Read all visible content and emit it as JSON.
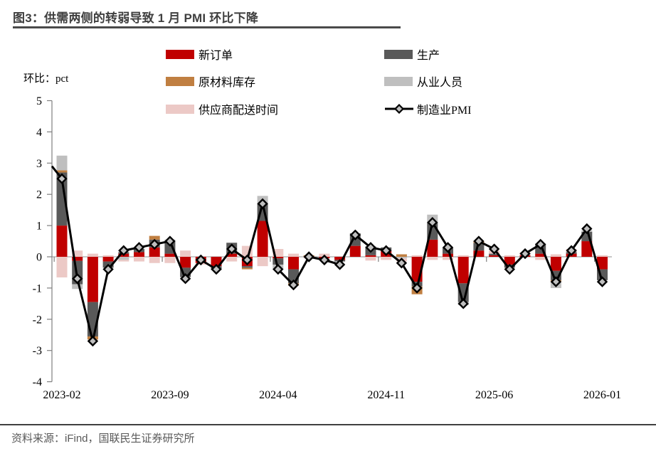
{
  "header": {
    "title": "图3：供需两侧的转弱导致 1 月 PMI 环比下降"
  },
  "footer": {
    "source": "资料来源：iFind，国联民生证券研究所"
  },
  "chart_data": {
    "type": "bar",
    "subtype": "stacked-bar-with-line-overlay",
    "unit_label": "环比：pct",
    "legend_position": "top",
    "grid": false,
    "ylim": [
      -4,
      5
    ],
    "y_ticks": [
      5,
      4,
      3,
      2,
      1,
      0,
      -1,
      -2,
      -3,
      -4
    ],
    "x_tick_labels": [
      "2023-02",
      "2023-09",
      "2024-04",
      "2024-11",
      "2025-06",
      "2026-01"
    ],
    "x": [
      "2023-02",
      "2023-03",
      "2023-04",
      "2023-05",
      "2023-06",
      "2023-07",
      "2023-08",
      "2023-09",
      "2023-10",
      "2023-11",
      "2023-12",
      "2024-01",
      "2024-02",
      "2024-03",
      "2024-04",
      "2024-05",
      "2024-06",
      "2024-07",
      "2024-08",
      "2024-09",
      "2024-10",
      "2024-11",
      "2024-12",
      "2025-01",
      "2025-02",
      "2025-03",
      "2025-04",
      "2025-05",
      "2025-06",
      "2025-07",
      "2025-08",
      "2025-09",
      "2025-10",
      "2025-11",
      "2025-12",
      "2026-01"
    ],
    "series": [
      {
        "name": "新订单",
        "type": "bar",
        "color": "#C00000",
        "values": [
          1.0,
          -0.13,
          -1.45,
          -0.15,
          0.1,
          0.15,
          0.3,
          0.1,
          -0.35,
          -0.2,
          -0.3,
          0.1,
          -0.3,
          1.15,
          -0.05,
          -0.4,
          0,
          -0.05,
          -0.1,
          0.35,
          0.05,
          0.2,
          0,
          -0.8,
          0.55,
          0.1,
          -0.85,
          0.2,
          0.05,
          -0.25,
          0.05,
          0.1,
          -0.45,
          0.1,
          0.5,
          -0.4
        ]
      },
      {
        "name": "生产",
        "type": "bar",
        "color": "#595959",
        "values": [
          1.7,
          -0.75,
          -1.1,
          -0.2,
          0.05,
          0.1,
          0.25,
          0.4,
          -0.3,
          0,
          -0.12,
          0.35,
          -0.05,
          0.55,
          -0.2,
          -0.45,
          0,
          0,
          -0.05,
          0.4,
          0.28,
          0.1,
          0,
          -0.15,
          0.55,
          0.2,
          -0.6,
          0.25,
          0.05,
          -0.1,
          0,
          0.32,
          -0.3,
          0.05,
          0.3,
          -0.35
        ]
      },
      {
        "name": "原材料库存",
        "type": "bar",
        "color": "#C07F41",
        "values": [
          0.07,
          0,
          -0.1,
          0,
          0,
          0,
          0.12,
          0,
          0,
          0,
          0,
          0,
          -0.05,
          0,
          0,
          -0.07,
          0.05,
          0,
          0,
          0,
          0,
          0,
          0.08,
          -0.25,
          0,
          0,
          0,
          0.05,
          0,
          0,
          0,
          0,
          -0.05,
          0,
          0,
          0
        ]
      },
      {
        "name": "从业人员",
        "type": "bar",
        "color": "#BFBFBF",
        "values": [
          0.47,
          -0.15,
          0,
          0,
          -0.1,
          0,
          0,
          0.05,
          0,
          0,
          0,
          0,
          0,
          0.25,
          -0.15,
          0,
          0,
          0,
          0,
          0,
          0,
          0,
          -0.05,
          0,
          0.25,
          0,
          -0.1,
          0,
          0,
          0,
          0,
          0,
          -0.2,
          0,
          0.05,
          0
        ]
      },
      {
        "name": "供应商配送时间",
        "type": "bar",
        "color": "#ECC9C6",
        "values": [
          -0.66,
          0.2,
          0.1,
          0.05,
          -0.05,
          -0.15,
          -0.2,
          -0.2,
          0.2,
          -0.05,
          0,
          -0.15,
          0.35,
          -0.3,
          0.25,
          0.1,
          -0.05,
          0.1,
          0,
          0,
          -0.12,
          -0.1,
          -0.1,
          0.05,
          -0.1,
          -0.1,
          0.05,
          0,
          0.1,
          0.05,
          0.1,
          -0.1,
          0.08,
          0.1,
          0,
          0.05
        ]
      },
      {
        "name": "制造业PMI",
        "type": "line",
        "color": "#000000",
        "marker": "diamond",
        "marker_fill": "#BFBFBF",
        "values": [
          2.5,
          -0.7,
          -2.7,
          -0.4,
          0.2,
          0.3,
          0.4,
          0.5,
          -0.7,
          -0.1,
          -0.4,
          0.25,
          -0.1,
          1.7,
          -0.4,
          -0.9,
          0,
          -0.1,
          -0.25,
          0.7,
          0.3,
          0.2,
          -0.2,
          -1.0,
          1.1,
          0.3,
          -1.5,
          0.5,
          0.25,
          -0.4,
          0.1,
          0.4,
          -0.8,
          0.2,
          0.9,
          -0.8
        ]
      }
    ],
    "line_lead_in_value": 2.9,
    "axis_color": "#7f7f7f",
    "zero_line_color": "#a6a6a6"
  }
}
